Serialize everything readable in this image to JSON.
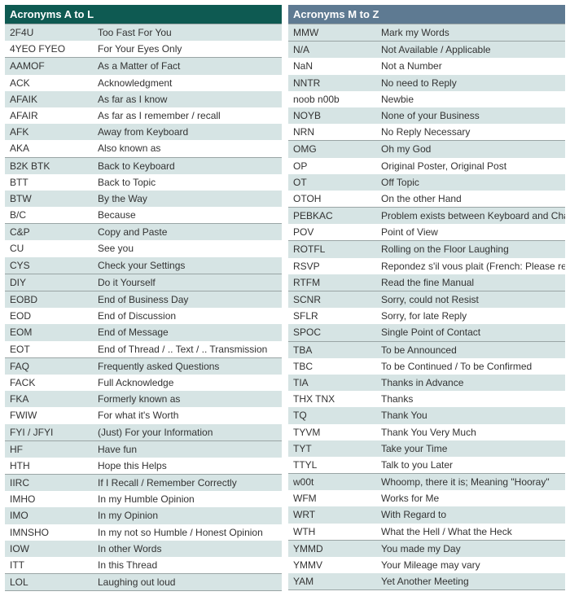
{
  "colors": {
    "header_left_bg": "#0e5a52",
    "header_right_bg": "#5e7a92",
    "header_text": "#ffffff",
    "row_even_bg": "#d6e4e4",
    "row_odd_bg": "#ffffff",
    "text": "#333333",
    "group_border": "#9aa5a5"
  },
  "left": {
    "title": "Acronyms A to L",
    "groups": [
      [
        {
          "a": "2F4U",
          "d": "Too Fast For You"
        },
        {
          "a": "4YEO FYEO",
          "d": "For Your Eyes Only"
        }
      ],
      [
        {
          "a": "AAMOF",
          "d": "As a Matter of Fact"
        },
        {
          "a": "ACK",
          "d": "Acknowledgment"
        },
        {
          "a": "AFAIK",
          "d": "As far as I know"
        },
        {
          "a": "AFAIR",
          "d": "As far as I remember / recall"
        },
        {
          "a": "AFK",
          "d": "Away from Keyboard"
        },
        {
          "a": "AKA",
          "d": "Also known as"
        }
      ],
      [
        {
          "a": "B2K BTK",
          "d": "Back to Keyboard"
        },
        {
          "a": "BTT",
          "d": "Back to Topic"
        },
        {
          "a": "BTW",
          "d": "By the Way"
        },
        {
          "a": "B/C",
          "d": "Because"
        }
      ],
      [
        {
          "a": "C&P",
          "d": "Copy and Paste"
        },
        {
          "a": "CU",
          "d": "See you"
        },
        {
          "a": "CYS",
          "d": "Check your Settings"
        }
      ],
      [
        {
          "a": "DIY",
          "d": "Do it Yourself"
        }
      ],
      [
        {
          "a": "EOBD",
          "d": "End of Business Day"
        },
        {
          "a": "EOD",
          "d": "End of Discussion"
        },
        {
          "a": "EOM",
          "d": "End of Message"
        },
        {
          "a": "EOT",
          "d": "End of Thread / .. Text / .. Transmission"
        }
      ],
      [
        {
          "a": "FAQ",
          "d": "Frequently asked Questions"
        },
        {
          "a": "FACK",
          "d": "Full Acknowledge"
        },
        {
          "a": "FKA",
          "d": "Formerly known as"
        },
        {
          "a": "FWIW",
          "d": "For what it's Worth"
        },
        {
          "a": "FYI / JFYI",
          "d": "(Just) For your Information"
        }
      ],
      [
        {
          "a": "HF",
          "d": "Have fun"
        },
        {
          "a": "HTH",
          "d": "Hope this Helps"
        }
      ],
      [
        {
          "a": "IIRC",
          "d": "If I Recall / Remember Correctly"
        },
        {
          "a": "IMHO",
          "d": "In my Humble Opinion"
        },
        {
          "a": "IMO",
          "d": "In my Opinion"
        },
        {
          "a": "IMNSHO",
          "d": "In my not so Humble / Honest Opinion"
        },
        {
          "a": "IOW",
          "d": "In other Words"
        },
        {
          "a": "ITT",
          "d": "In this Thread"
        }
      ],
      [
        {
          "a": "LOL",
          "d": "Laughing out loud"
        }
      ]
    ]
  },
  "right": {
    "title": "Acronyms M to Z",
    "groups": [
      [
        {
          "a": "MMW",
          "d": "Mark my Words"
        }
      ],
      [
        {
          "a": "N/A",
          "d": "Not Available / Applicable"
        },
        {
          "a": "NaN",
          "d": "Not a Number"
        },
        {
          "a": "NNTR",
          "d": "No need to Reply"
        },
        {
          "a": "noob n00b",
          "d": "Newbie"
        },
        {
          "a": "NOYB",
          "d": "None of your Business"
        },
        {
          "a": "NRN",
          "d": "No Reply Necessary"
        }
      ],
      [
        {
          "a": "OMG",
          "d": "Oh my God"
        },
        {
          "a": "OP",
          "d": "Original Poster, Original Post"
        },
        {
          "a": "OT",
          "d": "Off Topic"
        },
        {
          "a": "OTOH",
          "d": "On the other Hand"
        }
      ],
      [
        {
          "a": "PEBKAC",
          "d": "Problem exists between Keyboard and Chair"
        },
        {
          "a": "POV",
          "d": "Point of View"
        }
      ],
      [
        {
          "a": "ROTFL",
          "d": "Rolling on the Floor Laughing"
        },
        {
          "a": "RSVP",
          "d": "Repondez s'il vous plait (French: Please reply)"
        },
        {
          "a": "RTFM",
          "d": "Read the fine Manual"
        }
      ],
      [
        {
          "a": "SCNR",
          "d": "Sorry, could not Resist"
        },
        {
          "a": "SFLR",
          "d": "Sorry, for late Reply"
        },
        {
          "a": "SPOC",
          "d": "Single Point of Contact"
        }
      ],
      [
        {
          "a": "TBA",
          "d": "To be Announced"
        },
        {
          "a": "TBC",
          "d": "To be Continued / To be Confirmed"
        },
        {
          "a": "TIA",
          "d": "Thanks in Advance"
        },
        {
          "a": "THX TNX",
          "d": "Thanks"
        },
        {
          "a": "TQ",
          "d": "Thank You"
        },
        {
          "a": "TYVM",
          "d": "Thank You Very Much"
        },
        {
          "a": "TYT",
          "d": "Take your Time"
        },
        {
          "a": "TTYL",
          "d": "Talk to you Later"
        }
      ],
      [
        {
          "a": "w00t",
          "d": "Whoomp, there it is; Meaning \"Hooray\""
        },
        {
          "a": "WFM",
          "d": "Works for Me"
        },
        {
          "a": "WRT",
          "d": "With Regard to"
        },
        {
          "a": "WTH",
          "d": "What the Hell / What the Heck"
        }
      ],
      [
        {
          "a": "YMMD",
          "d": "You made my Day"
        },
        {
          "a": "YMMV",
          "d": "Your Mileage may vary"
        },
        {
          "a": "YAM",
          "d": "Yet Another Meeting"
        }
      ]
    ]
  }
}
